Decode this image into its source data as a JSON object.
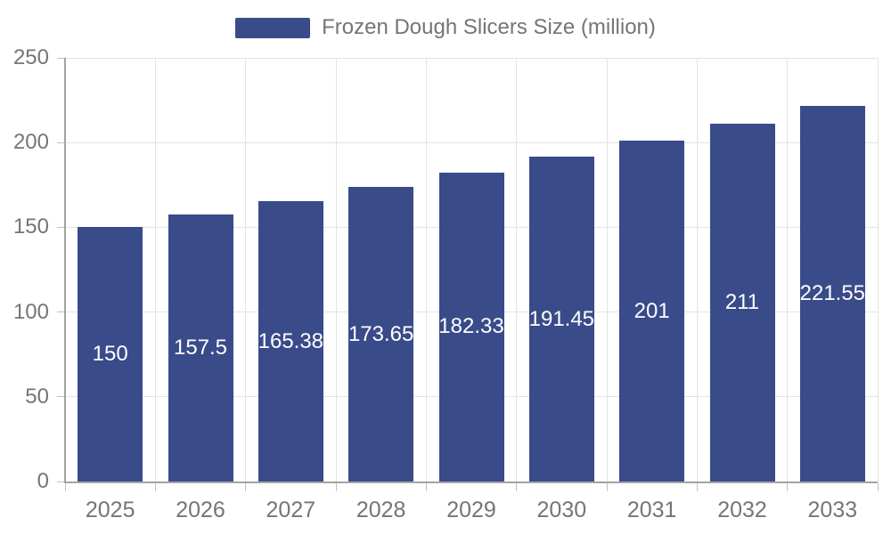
{
  "legend": {
    "items": [
      {
        "label": "Frozen Dough Slicers Size (million)",
        "color": "#3A4B8A"
      }
    ]
  },
  "chart_data": {
    "type": "bar",
    "title": "Frozen Dough Slicers Size (million)",
    "categories": [
      "2025",
      "2026",
      "2027",
      "2028",
      "2029",
      "2030",
      "2031",
      "2032",
      "2033"
    ],
    "series": [
      {
        "name": "Frozen Dough Slicers Size (million)",
        "values": [
          150,
          157.5,
          165.38,
          173.65,
          182.33,
          191.45,
          201,
          211,
          221.55
        ]
      }
    ],
    "value_labels": [
      "150",
      "157.5",
      "165.38",
      "173.65",
      "182.33",
      "191.45",
      "201",
      "211",
      "221.55"
    ],
    "xlabel": "",
    "ylabel": "",
    "ylim": [
      0,
      250
    ],
    "yticks": [
      0,
      50,
      100,
      150,
      200,
      250
    ],
    "grid": true,
    "legend_position": "top-center",
    "colors": {
      "bar": "#3A4B8A",
      "bar_label": "#FFFFFF",
      "axis_text": "#757575",
      "grid_line": "#E3E3E3",
      "axis_line": "#A3A3A3"
    }
  }
}
